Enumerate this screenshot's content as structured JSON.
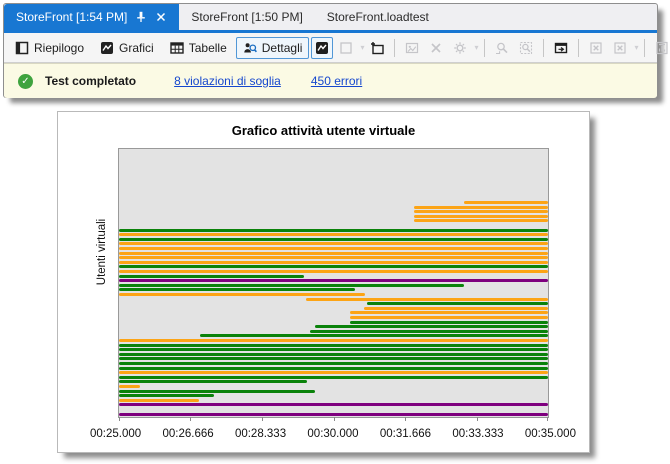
{
  "window": {
    "tabs": [
      {
        "label": "StoreFront [1:54 PM]",
        "active": true
      },
      {
        "label": "StoreFront [1:50 PM]",
        "active": false
      },
      {
        "label": "StoreFront.loadtest",
        "active": false
      }
    ],
    "toolbar": {
      "buttons": [
        {
          "label": "Riepilogo",
          "icon": "summary-icon"
        },
        {
          "label": "Grafici",
          "icon": "chart-icon"
        },
        {
          "label": "Tabelle",
          "icon": "table-icon"
        },
        {
          "label": "Dettagli",
          "icon": "details-icon",
          "selected": true
        }
      ],
      "icon_cluster": [
        {
          "name": "chart-view-toggle-icon",
          "enabled": true,
          "selected": true
        },
        {
          "name": "placeholder-icon",
          "enabled": false,
          "caret": true
        },
        {
          "name": "add-graph-icon",
          "enabled": true
        },
        {
          "sep": true
        },
        {
          "name": "picture-icon",
          "enabled": false
        },
        {
          "name": "delete-icon",
          "enabled": false
        },
        {
          "name": "gear-icon",
          "enabled": false,
          "caret": true
        },
        {
          "sep": true
        },
        {
          "name": "zoom-reset-icon",
          "enabled": false
        },
        {
          "name": "zoom-selection-icon",
          "enabled": false
        },
        {
          "sep": true
        },
        {
          "name": "show-panel-icon",
          "enabled": true
        },
        {
          "sep": true
        },
        {
          "name": "excel-report-icon",
          "enabled": false
        },
        {
          "name": "excel-export-icon",
          "enabled": false,
          "caret": true
        },
        {
          "sep": true
        },
        {
          "name": "summary-report-icon",
          "enabled": false
        },
        {
          "name": "attach-icon",
          "enabled": false
        }
      ]
    },
    "status": {
      "text": "Test completato",
      "links": [
        "8 violazioni di soglia",
        "450 errori"
      ],
      "accent_color": "#1877d2",
      "status_green": "#3fa33f",
      "link_color": "#1547ce",
      "bar_background": "#fbfae4"
    }
  },
  "chart_data": {
    "type": "bar",
    "orientation": "horizontal-gantt",
    "title": "Grafico attività utente virtuale",
    "ylabel": "Utenti virtuali",
    "xlabel": "",
    "legend": false,
    "grid": false,
    "x_ticks": [
      "00:25.000",
      "00:26.666",
      "00:28.333",
      "00:30.000",
      "00:31.666",
      "00:33.333",
      "00:35.000"
    ],
    "x_range_seconds": [
      25.0,
      35.0
    ],
    "plot_background": "#e3e3e3",
    "colors": {
      "o": "#fca415",
      "g": "#0a820a",
      "p": "#7e007e"
    },
    "rows": [
      {
        "r": 0,
        "c": "o",
        "s": 0.805,
        "e": 1
      },
      {
        "r": 1,
        "c": "o",
        "s": 0.688,
        "e": 1
      },
      {
        "r": 2,
        "c": "o",
        "s": 0.688,
        "e": 1
      },
      {
        "r": 3,
        "c": "o",
        "s": 0.688,
        "e": 1
      },
      {
        "r": 4,
        "c": "o",
        "s": 0.688,
        "e": 1
      },
      {
        "r": 6,
        "c": "g",
        "s": 0,
        "e": 1
      },
      {
        "r": 7,
        "c": "o",
        "s": 0,
        "e": 1
      },
      {
        "r": 8,
        "c": "g",
        "s": 0,
        "e": 1
      },
      {
        "r": 9,
        "c": "o",
        "s": 0,
        "e": 1
      },
      {
        "r": 10,
        "c": "o",
        "s": 0,
        "e": 1
      },
      {
        "r": 11,
        "c": "o",
        "s": 0,
        "e": 1
      },
      {
        "r": 12,
        "c": "o",
        "s": 0,
        "e": 1
      },
      {
        "r": 13,
        "c": "o",
        "s": 0,
        "e": 1
      },
      {
        "r": 14,
        "c": "g",
        "s": 0,
        "e": 1
      },
      {
        "r": 15,
        "c": "o",
        "s": 0,
        "e": 1
      },
      {
        "r": 16,
        "c": "g",
        "s": 0,
        "e": 0.431
      },
      {
        "r": 17,
        "c": "p",
        "s": 0,
        "e": 1
      },
      {
        "r": 18,
        "c": "g",
        "s": 0,
        "e": 0.805
      },
      {
        "r": 19,
        "c": "g",
        "s": 0,
        "e": 0.55
      },
      {
        "r": 20,
        "c": "o",
        "s": 0,
        "e": 0.573
      },
      {
        "r": 21,
        "c": "o",
        "s": 0.436,
        "e": 1
      },
      {
        "r": 22,
        "c": "g",
        "s": 0.578,
        "e": 1
      },
      {
        "r": 23,
        "c": "o",
        "s": 0.57,
        "e": 1
      },
      {
        "r": 24,
        "c": "o",
        "s": 0.538,
        "e": 1
      },
      {
        "r": 25,
        "c": "o",
        "s": 0.538,
        "e": 1
      },
      {
        "r": 26,
        "c": "g",
        "s": 0.538,
        "e": 1
      },
      {
        "r": 27,
        "c": "g",
        "s": 0.457,
        "e": 1
      },
      {
        "r": 28,
        "c": "g",
        "s": 0.445,
        "e": 1
      },
      {
        "r": 29,
        "c": "g",
        "s": 0.189,
        "e": 1
      },
      {
        "r": 30,
        "c": "o",
        "s": 0,
        "e": 1
      },
      {
        "r": 31,
        "c": "g",
        "s": 0,
        "e": 1
      },
      {
        "r": 32,
        "c": "g",
        "s": 0,
        "e": 1
      },
      {
        "r": 33,
        "c": "g",
        "s": 0,
        "e": 1
      },
      {
        "r": 34,
        "c": "g",
        "s": 0,
        "e": 1
      },
      {
        "r": 35,
        "c": "g",
        "s": 0,
        "e": 1
      },
      {
        "r": 36,
        "c": "g",
        "s": 0,
        "e": 1
      },
      {
        "r": 37,
        "c": "o",
        "s": 0,
        "e": 1
      },
      {
        "r": 38,
        "c": "g",
        "s": 0,
        "e": 1
      },
      {
        "r": 39,
        "c": "g",
        "s": 0,
        "e": 0.438
      },
      {
        "r": 40,
        "c": "o",
        "s": 0,
        "e": 0.049
      },
      {
        "r": 41,
        "c": "g",
        "s": 0,
        "e": 0.457
      },
      {
        "r": 42,
        "c": "g",
        "s": 0,
        "e": 0.221
      },
      {
        "r": 43,
        "c": "o",
        "s": 0,
        "e": 0.186
      },
      {
        "r": 44,
        "c": "p",
        "s": 0,
        "e": 1
      },
      {
        "r": 46,
        "c": "p",
        "s": 0,
        "e": 1
      }
    ]
  }
}
